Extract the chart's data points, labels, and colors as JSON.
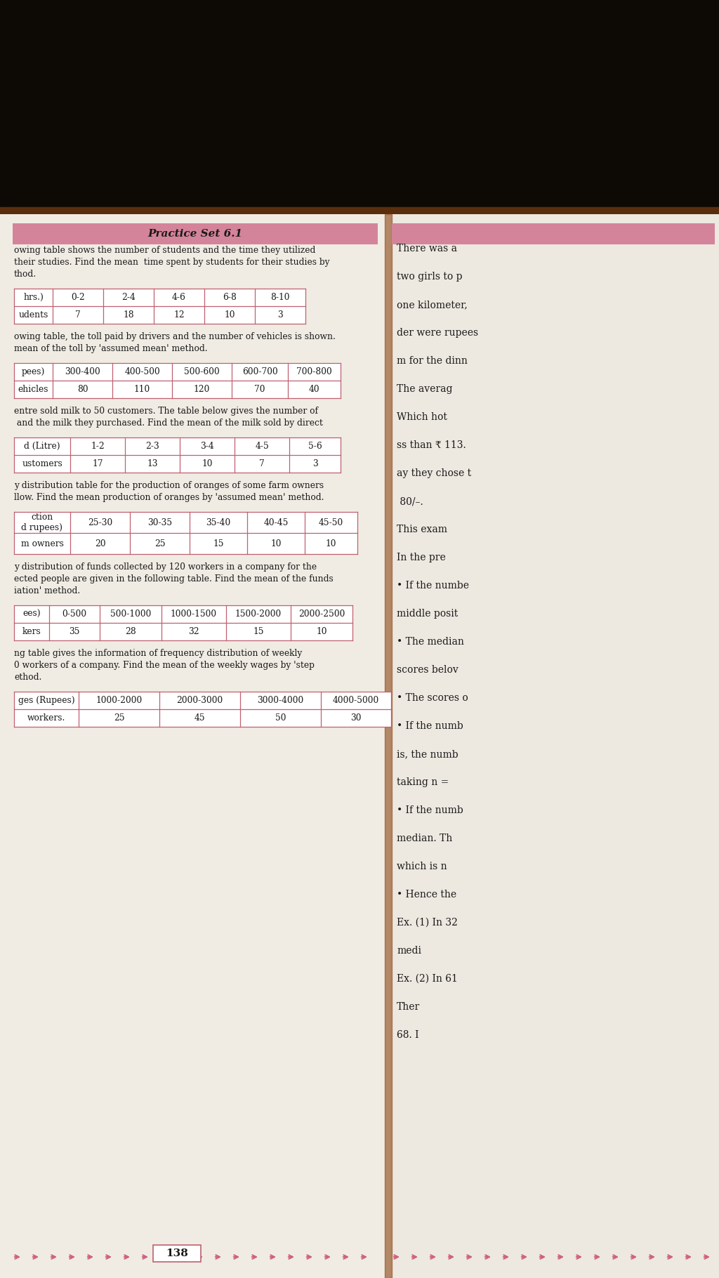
{
  "title": "Practice Set 6.1",
  "title_bg": "#d4849a",
  "table_line_color": "#c06070",
  "arrow_color": "#d06080",
  "spine_color": "#8B4513",
  "q1_text_lines": [
    "owing table shows the number of students and the time they utilized",
    "their studies. Find the mean  time spent by students for their studies by",
    "thod."
  ],
  "q1_headers": [
    "hrs.)",
    "0-2",
    "2-4",
    "4-6",
    "6-8",
    "8-10"
  ],
  "q1_row1": [
    "udents",
    "7",
    "18",
    "12",
    "10",
    "3"
  ],
  "q2_text_lines": [
    "owing table, the toll paid by drivers and the number of vehicles is shown.",
    "mean of the toll by 'assumed mean' method."
  ],
  "q2_headers": [
    "pees)",
    "300-400",
    "400-500",
    "500-600",
    "600-700",
    "700-800"
  ],
  "q2_row1": [
    "ehicles",
    "80",
    "110",
    "120",
    "70",
    "40"
  ],
  "q3_text_lines": [
    "entre sold milk to 50 customers. The table below gives the number of",
    " and the milk they purchased. Find the mean of the milk sold by direct"
  ],
  "q3_headers": [
    "d (Litre)",
    "1-2",
    "2-3",
    "3-4",
    "4-5",
    "5-6"
  ],
  "q3_row1": [
    "ustomers",
    "17",
    "13",
    "10",
    "7",
    "3"
  ],
  "q4_text_lines": [
    "y distribution table for the production of oranges of some farm owners",
    "llow. Find the mean production of oranges by 'assumed mean' method."
  ],
  "q4_headers": [
    "ction\nd rupees)",
    "25-30",
    "30-35",
    "35-40",
    "40-45",
    "45-50"
  ],
  "q4_row1": [
    "m owners",
    "20",
    "25",
    "15",
    "10",
    "10"
  ],
  "q5_text_lines": [
    "y distribution of funds collected by 120 workers in a company for the",
    "ected people are given in the following table. Find the mean of the funds",
    "iation' method."
  ],
  "q5_headers": [
    "ees)",
    "0-500",
    "500-1000",
    "1000-1500",
    "1500-2000",
    "2000-2500"
  ],
  "q5_row1": [
    "kers",
    "35",
    "28",
    "32",
    "15",
    "10"
  ],
  "q6_text_lines": [
    "ng table gives the information of frequency distribution of weekly",
    "0 workers of a company. Find the mean of the weekly wages by 'step",
    "ethod."
  ],
  "q6_headers": [
    "ges (Rupees)",
    "1000-2000",
    "2000-3000",
    "3000-4000",
    "4000-5000"
  ],
  "q6_row1": [
    "workers.",
    "25",
    "45",
    "50",
    "30"
  ],
  "right_texts": [
    [
      "There was a",
      10
    ],
    [
      "two girls to p",
      10
    ],
    [
      "one kilometer,",
      10
    ],
    [
      "der were rupees",
      10
    ],
    [
      "m for the dinn",
      10
    ],
    [
      "The averag",
      10
    ],
    [
      "Which hot",
      10
    ],
    [
      "ss than ₹ 113.",
      10
    ],
    [
      "ay they chose t",
      10
    ],
    [
      " 80/–.",
      10
    ],
    [
      "This exam",
      10
    ],
    [
      "In the pre",
      10
    ],
    [
      "• If the numbe",
      10
    ],
    [
      "middle posit",
      10
    ],
    [
      "• The median",
      10
    ],
    [
      "scores belov",
      10
    ],
    [
      "• The scores o",
      10
    ],
    [
      "• If the numb",
      10
    ],
    [
      "is, the numb",
      10
    ],
    [
      "taking n =",
      10
    ],
    [
      "• If the numb",
      10
    ],
    [
      "median. Th",
      10
    ],
    [
      "which is n",
      10
    ],
    [
      "• Hence the",
      10
    ],
    [
      "Ex. (1) In 32",
      10
    ],
    [
      "medi",
      10
    ],
    [
      "Ex. (2) In 61",
      10
    ],
    [
      "Ther",
      10
    ],
    [
      "68. I",
      10
    ]
  ],
  "page_number": "138"
}
